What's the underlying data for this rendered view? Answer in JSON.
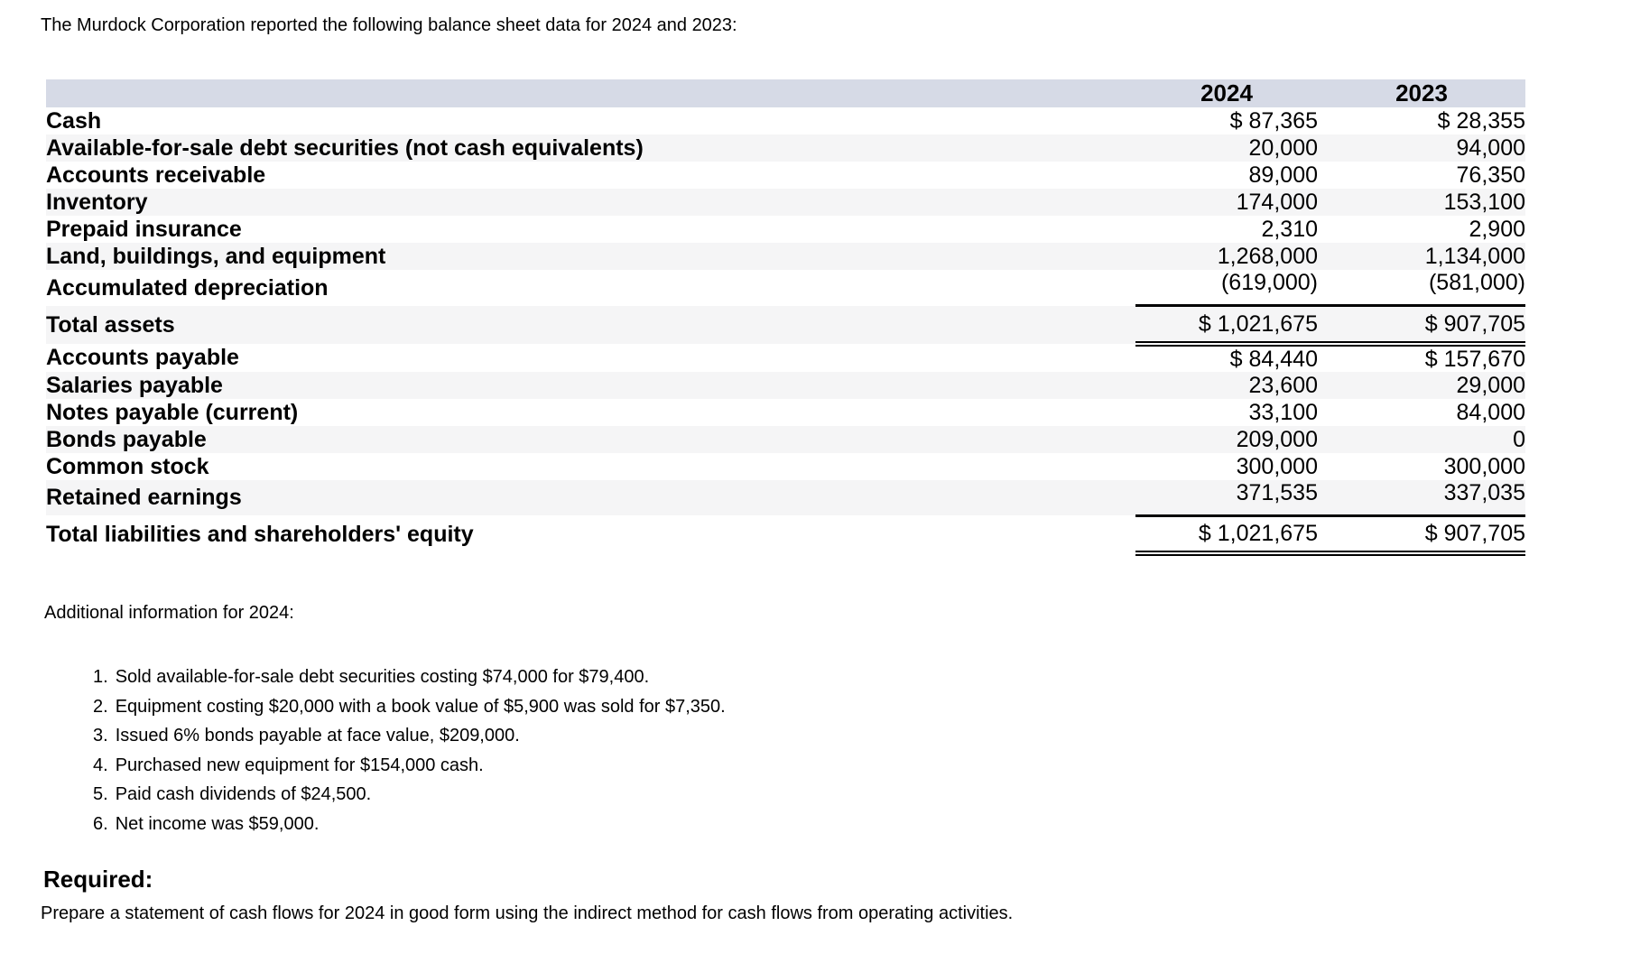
{
  "intro": "The Murdock Corporation reported the following balance sheet data for 2024 and 2023:",
  "balance_sheet": {
    "columns": {
      "y2024": "2024",
      "y2023": "2023"
    },
    "rows": [
      {
        "label": "Cash",
        "y2024": "$ 87,365",
        "y2023": "$ 28,355"
      },
      {
        "label": "Available-for-sale debt securities (not cash equivalents)",
        "y2024": "20,000",
        "y2023": "94,000"
      },
      {
        "label": "Accounts receivable",
        "y2024": "89,000",
        "y2023": "76,350"
      },
      {
        "label": "Inventory",
        "y2024": "174,000",
        "y2023": "153,100"
      },
      {
        "label": "Prepaid insurance",
        "y2024": "2,310",
        "y2023": "2,900"
      },
      {
        "label": "Land, buildings, and equipment",
        "y2024": "1,268,000",
        "y2023": "1,134,000"
      },
      {
        "label": "Accumulated depreciation",
        "y2024": "(619,000)",
        "y2023": "(581,000)"
      },
      {
        "label": "Total assets",
        "y2024": "$ 1,021,675",
        "y2023": "$ 907,705"
      },
      {
        "label": "Accounts payable",
        "y2024": "$ 84,440",
        "y2023": "$ 157,670"
      },
      {
        "label": "Salaries payable",
        "y2024": "23,600",
        "y2023": "29,000"
      },
      {
        "label": "Notes payable (current)",
        "y2024": "33,100",
        "y2023": "84,000"
      },
      {
        "label": "Bonds payable",
        "y2024": "209,000",
        "y2023": "0"
      },
      {
        "label": "Common stock",
        "y2024": "300,000",
        "y2023": "300,000"
      },
      {
        "label": "Retained earnings",
        "y2024": "371,535",
        "y2023": "337,035"
      },
      {
        "label": "Total liabilities and shareholders' equity",
        "y2024": "$ 1,021,675",
        "y2023": "$ 907,705"
      }
    ]
  },
  "additional_info": {
    "heading": "Additional information for 2024:",
    "items": [
      {
        "num": "1.",
        "text": "Sold available-for-sale debt securities costing $74,000 for $79,400."
      },
      {
        "num": "2.",
        "text": "Equipment costing $20,000 with a book value of $5,900 was sold for $7,350."
      },
      {
        "num": "3.",
        "text": "Issued 6% bonds payable at face value, $209,000."
      },
      {
        "num": "4.",
        "text": "Purchased new equipment for $154,000 cash."
      },
      {
        "num": "5.",
        "text": "Paid cash dividends of $24,500."
      },
      {
        "num": "6.",
        "text": "Net income was $59,000."
      }
    ]
  },
  "required": {
    "heading": "Required:",
    "text": "Prepare a statement of cash flows for 2024 in good form using the indirect method for cash flows from operating activities."
  },
  "colors": {
    "header_bg": "#d6dae6",
    "stripe_bg": "#f5f5f6",
    "rule_color": "#000000",
    "text": "#000000"
  }
}
